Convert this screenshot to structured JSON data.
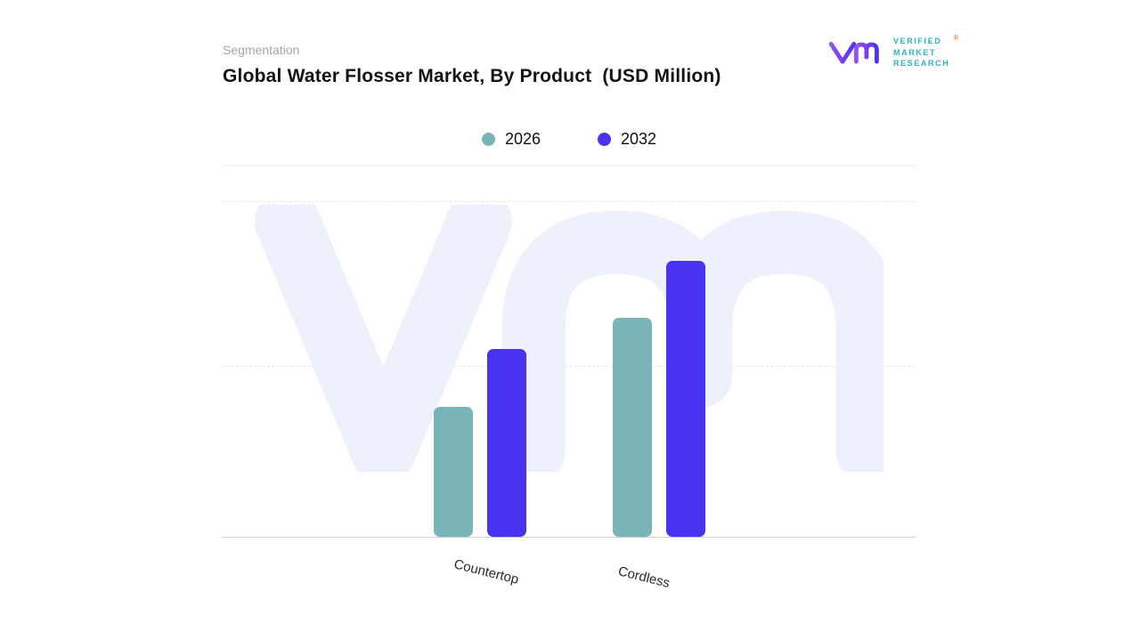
{
  "header": {
    "eyebrow": "Segmentation",
    "title": "Global Water Flosser Market, By Product  (USD Million)"
  },
  "logo": {
    "lines": [
      "VERIFIED",
      "MARKET",
      "RESEARCH"
    ],
    "registered": "®",
    "text_color": "#2ab4bc",
    "registered_color": "#e87d2f",
    "glyph_gradient": [
      "#9a4ff0",
      "#4f33f0"
    ]
  },
  "legend": {
    "items": [
      {
        "label": "2026",
        "color": "#79b4b9"
      },
      {
        "label": "2032",
        "color": "#4733f0"
      }
    ]
  },
  "chart_data": {
    "type": "bar",
    "title": "Global Water Flosser Market, By Product (USD Million)",
    "unit": "USD Million",
    "categories": [
      "Countertop",
      "Cordless"
    ],
    "series": [
      {
        "name": "2026",
        "color": "#79b4b9",
        "values": [
          146,
          246
        ]
      },
      {
        "name": "2032",
        "color": "#4733f0",
        "values": [
          211,
          310
        ]
      }
    ],
    "value_axis_visible": false,
    "values_are_estimated_relative_heights": true,
    "ylim": [
      0,
      330
    ],
    "grid": "horizontal-dashed",
    "legend_position": "top-center",
    "watermark_color": "#eef1fb",
    "baseline_color": "#d0d0d0"
  }
}
